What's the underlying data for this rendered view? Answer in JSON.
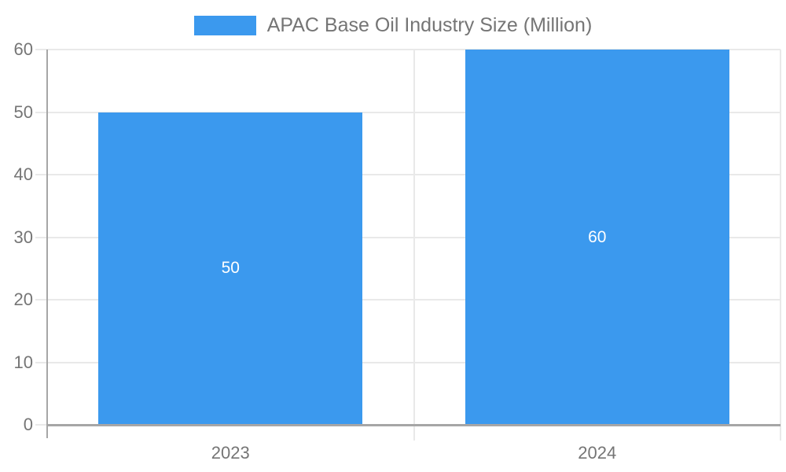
{
  "legend": {
    "label": "APAC Base Oil Industry Size (Million)"
  },
  "colors": {
    "bar": "#3B99EE",
    "axis_line": "#A6A6A6",
    "grid_line": "#E9E9E9",
    "tick_text": "#757575",
    "value_label_text": "#FFFFFF",
    "background": "#FFFFFF"
  },
  "chart_data": {
    "type": "bar",
    "title": "APAC Base Oil Industry Size (Million)",
    "categories": [
      "2023",
      "2024"
    ],
    "series": [
      {
        "name": "APAC Base Oil Industry Size (Million)",
        "values": [
          50,
          60
        ]
      }
    ],
    "data_labels": [
      "50",
      "60"
    ],
    "xlabel": "",
    "ylabel": "",
    "ylim": [
      0,
      60
    ],
    "yticks": [
      0,
      10,
      20,
      30,
      40,
      50,
      60
    ],
    "grid": true,
    "legend_position": "top",
    "bar_width_fraction": 0.72
  }
}
